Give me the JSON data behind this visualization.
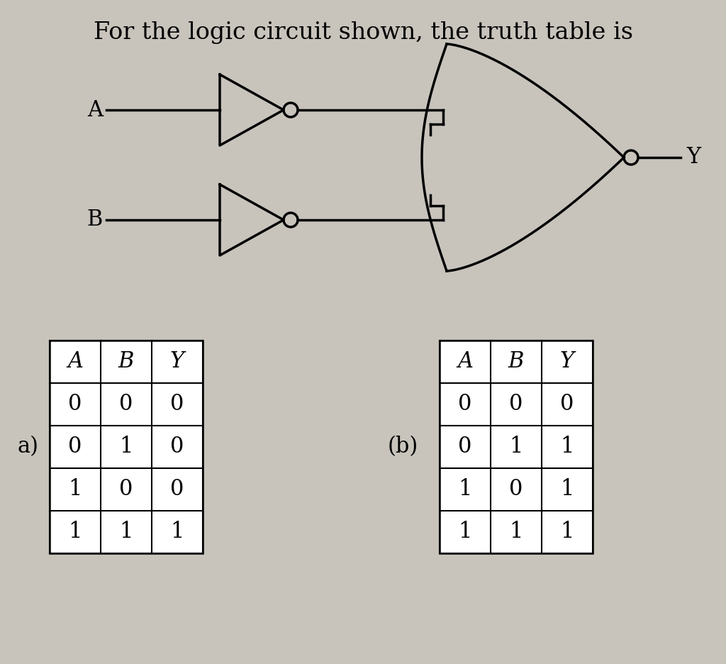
{
  "title": "For the logic circuit shown, the truth table is",
  "title_fontsize": 24,
  "background_color": "#c8c4bc",
  "paper_color": "#d4d0c8",
  "table_a": {
    "headers": [
      "A",
      "B",
      "Y"
    ],
    "rows": [
      [
        "0",
        "0",
        "0"
      ],
      [
        "0",
        "1",
        "0"
      ],
      [
        "1",
        "0",
        "0"
      ],
      [
        "1",
        "1",
        "1"
      ]
    ],
    "label": "a)"
  },
  "table_b": {
    "headers": [
      "A",
      "B",
      "Y"
    ],
    "rows": [
      [
        "0",
        "0",
        "0"
      ],
      [
        "0",
        "1",
        "1"
      ],
      [
        "1",
        "0",
        "1"
      ],
      [
        "1",
        "1",
        "1"
      ]
    ],
    "label": "(b)"
  }
}
